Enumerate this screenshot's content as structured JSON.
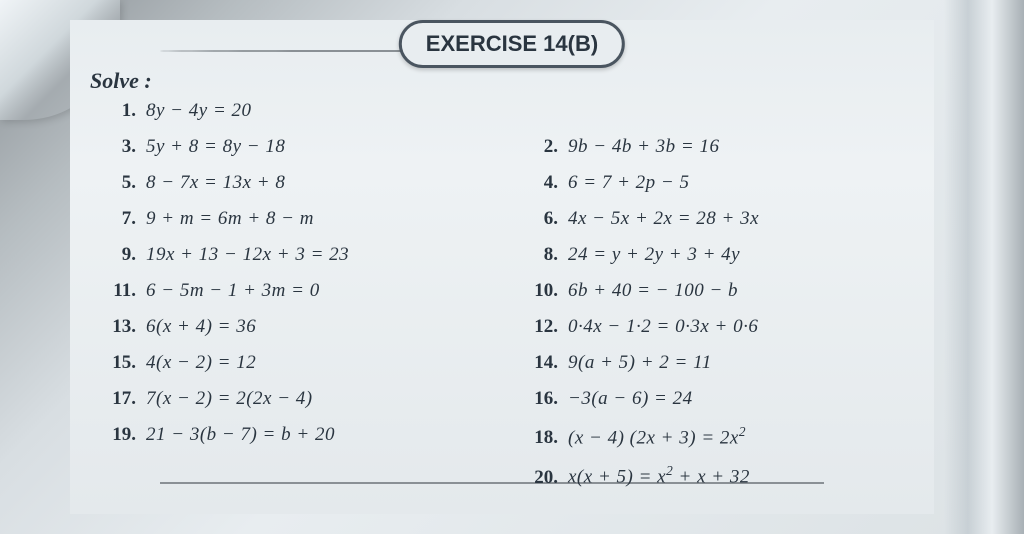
{
  "exercise_title": "EXERCISE 14(B)",
  "instruction": "Solve :",
  "left_column": [
    {
      "n": "1.",
      "expr": "8y − 4y = 20"
    },
    {
      "n": "3.",
      "expr": "5y + 8 = 8y − 18"
    },
    {
      "n": "5.",
      "expr": "8 − 7x = 13x + 8"
    },
    {
      "n": "7.",
      "expr": "9 + m = 6m + 8 − m"
    },
    {
      "n": "9.",
      "expr": "19x + 13 − 12x + 3 = 23"
    },
    {
      "n": "11.",
      "expr": "6 − 5m − 1 + 3m = 0"
    },
    {
      "n": "13.",
      "expr": "6(x + 4) = 36"
    },
    {
      "n": "15.",
      "expr": "4(x − 2) = 12"
    },
    {
      "n": "17.",
      "expr": "7(x − 2) = 2(2x − 4)"
    },
    {
      "n": "19.",
      "expr": "21 − 3(b − 7) = b + 20"
    }
  ],
  "right_column": [
    {
      "n": "2.",
      "expr": "9b − 4b + 3b = 16"
    },
    {
      "n": "4.",
      "expr": "6 = 7 + 2p − 5"
    },
    {
      "n": "6.",
      "expr": "4x − 5x + 2x = 28 + 3x"
    },
    {
      "n": "8.",
      "expr": "24 = y + 2y + 3 + 4y"
    },
    {
      "n": "10.",
      "expr": "6b + 40 = − 100 − b"
    },
    {
      "n": "12.",
      "expr": "0·4x − 1·2 = 0·3x + 0·6"
    },
    {
      "n": "14.",
      "expr": "9(a + 5) + 2 = 11"
    },
    {
      "n": "16.",
      "expr": "−3(a − 6) = 24"
    },
    {
      "n": "18.",
      "expr_html": "(x − 4) (2x + 3) = 2x<span class='sup'>2</span>"
    },
    {
      "n": "20.",
      "expr_html": "x(x + 5) = x<span class='sup'>2</span> + x + 32"
    }
  ],
  "style": {
    "page_bg_gradient": [
      "#8a9095",
      "#b5bcc0",
      "#d8dee2",
      "#e8edf0"
    ],
    "badge_border": "#4a5560",
    "badge_bg": "#e8edf0",
    "text_color": "#2a3540",
    "border_color": "#8a9095",
    "title_fontsize": 22,
    "problem_fontsize": 19,
    "instruction_fontsize": 22
  }
}
